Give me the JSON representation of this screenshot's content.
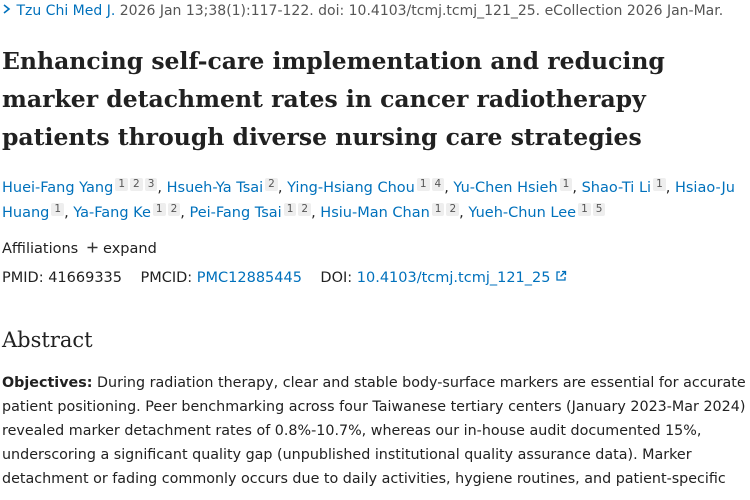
{
  "citation": {
    "journal": "Tzu Chi Med J.",
    "details": "2026 Jan 13;38(1):117-122. doi: 10.4103/tcmj.tcmj_121_25. eCollection 2026 Jan-Mar."
  },
  "title": "Enhancing self-care implementation and reducing marker detachment rates in cancer radiotherapy patients through diverse nursing care strategies",
  "author_separator": ",",
  "authors": [
    {
      "name": "Huei-Fang Yang",
      "affiliations": [
        "1",
        "2",
        "3"
      ]
    },
    {
      "name": "Hsueh-Ya Tsai",
      "affiliations": [
        "2"
      ]
    },
    {
      "name": "Ying-Hsiang Chou",
      "affiliations": [
        "1",
        "4"
      ]
    },
    {
      "name": "Yu-Chen Hsieh",
      "affiliations": [
        "1"
      ]
    },
    {
      "name": "Shao-Ti Li",
      "affiliations": [
        "1"
      ]
    },
    {
      "name": "Hsiao-Ju Huang",
      "affiliations": [
        "1"
      ]
    },
    {
      "name": "Ya-Fang Ke",
      "affiliations": [
        "1",
        "2"
      ]
    },
    {
      "name": "Pei-Fang Tsai",
      "affiliations": [
        "1",
        "2"
      ]
    },
    {
      "name": "Hsiu-Man Chan",
      "affiliations": [
        "1",
        "2"
      ]
    },
    {
      "name": "Yueh-Chun Lee",
      "affiliations": [
        "1",
        "5"
      ]
    }
  ],
  "affiliations": {
    "label": "Affiliations",
    "toggle": "expand"
  },
  "identifiers": {
    "pmid_label": "PMID:",
    "pmid": "41669335",
    "pmcid_label": "PMCID:",
    "pmcid": "PMC12885445",
    "doi_label": "DOI:",
    "doi": "10.4103/tcmj.tcmj_121_25"
  },
  "abstract": {
    "heading": "Abstract",
    "label": "Objectives:",
    "text": "During radiation therapy, clear and stable body-surface markers are essential for accurate patient positioning. Peer benchmarking across four Taiwanese tertiary centers (January 2023-Mar 2024) revealed marker detachment rates of 0.8%-10.7%, whereas our in-house audit documented 15%, underscoring a significant quality gap (unpublished institutional quality assurance data). Marker detachment or fading commonly occurs due to daily activities, hygiene routines, and patient-specific"
  }
}
